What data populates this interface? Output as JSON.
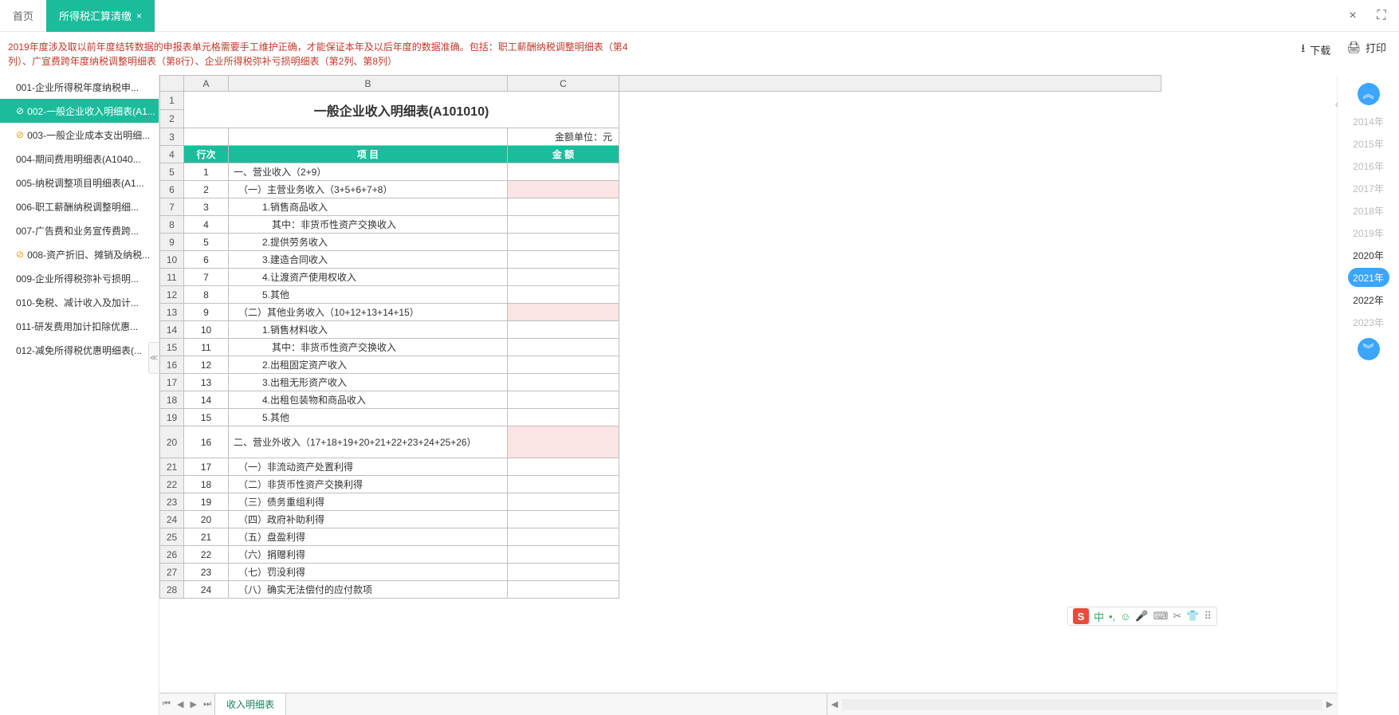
{
  "tabs": {
    "home": "首页",
    "active": "所得税汇算清缴"
  },
  "warning": "2019年度涉及取以前年度结转数据的申报表单元格需要手工维护正确，才能保证本年及以后年度的数据准确。包括：职工薪酬纳税调整明细表（第4列）、广宣费跨年度纳税调整明细表（第8行）、企业所得税弥补亏损明细表（第2列、第8列）",
  "actions": {
    "download": "下载",
    "print": "打印"
  },
  "sidebar": {
    "items": [
      {
        "label": "001-企业所得税年度纳税申...",
        "warn": false
      },
      {
        "label": "002-一般企业收入明细表(A1...",
        "warn": true,
        "selected": true
      },
      {
        "label": "003-一般企业成本支出明细...",
        "warn": true
      },
      {
        "label": "004-期间费用明细表(A1040...",
        "warn": false
      },
      {
        "label": "005-纳税调整项目明细表(A1...",
        "warn": false
      },
      {
        "label": "006-职工薪酬纳税调整明细...",
        "warn": false
      },
      {
        "label": "007-广告费和业务宣传费跨...",
        "warn": false
      },
      {
        "label": "008-资产折旧、摊销及纳税...",
        "warn": true
      },
      {
        "label": "009-企业所得税弥补亏损明...",
        "warn": false
      },
      {
        "label": "010-免税、减计收入及加计...",
        "warn": false
      },
      {
        "label": "011-研发费用加计扣除优惠...",
        "warn": false
      },
      {
        "label": "012-减免所得税优惠明细表(...",
        "warn": false
      }
    ]
  },
  "sheet": {
    "title": "一般企业收入明细表(A101010)",
    "unit_label": "金额单位：元",
    "columns": {
      "A": "A",
      "B": "B",
      "C": "C"
    },
    "col_widths": {
      "A": 56,
      "B": 350,
      "C": 140
    },
    "header_row": {
      "A": "行次",
      "B": "项  目",
      "C": "金  额"
    },
    "header_bg": "#1abc9c",
    "header_fg": "#ffffff",
    "pink_bg": "#fbe4e4",
    "grid_color": "#c0c0c0",
    "rows": [
      {
        "rn": "1",
        "item": "一、营业收入（2+9）",
        "pink": false
      },
      {
        "rn": "2",
        "item": "　（一）主营业务收入（3+5+6+7+8）",
        "pink": true
      },
      {
        "rn": "3",
        "item": "　　　1.销售商品收入",
        "pink": false
      },
      {
        "rn": "4",
        "item": "　　　　其中：非货币性资产交换收入",
        "pink": false
      },
      {
        "rn": "5",
        "item": "　　　2.提供劳务收入",
        "pink": false
      },
      {
        "rn": "6",
        "item": "　　　3.建造合同收入",
        "pink": false
      },
      {
        "rn": "7",
        "item": "　　　4.让渡资产使用权收入",
        "pink": false
      },
      {
        "rn": "8",
        "item": "　　　5.其他",
        "pink": false
      },
      {
        "rn": "9",
        "item": "　（二）其他业务收入（10+12+13+14+15）",
        "pink": true
      },
      {
        "rn": "10",
        "item": "　　　1.销售材料收入",
        "pink": false
      },
      {
        "rn": "11",
        "item": "　　　　其中：非货币性资产交换收入",
        "pink": false
      },
      {
        "rn": "12",
        "item": "　　　2.出租固定资产收入",
        "pink": false
      },
      {
        "rn": "13",
        "item": "　　　3.出租无形资产收入",
        "pink": false
      },
      {
        "rn": "14",
        "item": "　　　4.出租包装物和商品收入",
        "pink": false
      },
      {
        "rn": "15",
        "item": "　　　5.其他",
        "pink": false
      },
      {
        "rn": "16",
        "item": "二、营业外收入（17+18+19+20+21+22+23+24+25+26）",
        "pink": true,
        "tall": true
      },
      {
        "rn": "17",
        "item": "　（一）非流动资产处置利得",
        "pink": false
      },
      {
        "rn": "18",
        "item": "　（二）非货币性资产交换利得",
        "pink": false
      },
      {
        "rn": "19",
        "item": "　（三）债务重组利得",
        "pink": false
      },
      {
        "rn": "20",
        "item": "　（四）政府补助利得",
        "pink": false
      },
      {
        "rn": "21",
        "item": "　（五）盘盈利得",
        "pink": false
      },
      {
        "rn": "22",
        "item": "　（六）捐赠利得",
        "pink": false
      },
      {
        "rn": "23",
        "item": "　（七）罚没利得",
        "pink": false
      },
      {
        "rn": "24",
        "item": "　（八）确实无法偿付的应付款项",
        "pink": false
      }
    ],
    "bottom_tab": "收入明细表"
  },
  "years": {
    "items": [
      {
        "label": "2014年",
        "state": "dim"
      },
      {
        "label": "2015年",
        "state": "dim"
      },
      {
        "label": "2016年",
        "state": "dim"
      },
      {
        "label": "2017年",
        "state": "dim"
      },
      {
        "label": "2018年",
        "state": "dim"
      },
      {
        "label": "2019年",
        "state": "dim"
      },
      {
        "label": "2020年",
        "state": "dark"
      },
      {
        "label": "2021年",
        "state": "active"
      },
      {
        "label": "2022年",
        "state": "dark"
      },
      {
        "label": "2023年",
        "state": "dim"
      }
    ]
  },
  "ime": {
    "logo": "S",
    "items": [
      "中",
      "•,",
      "☺",
      "🎤",
      "⌨",
      "✂",
      "👕",
      "⠿"
    ]
  }
}
